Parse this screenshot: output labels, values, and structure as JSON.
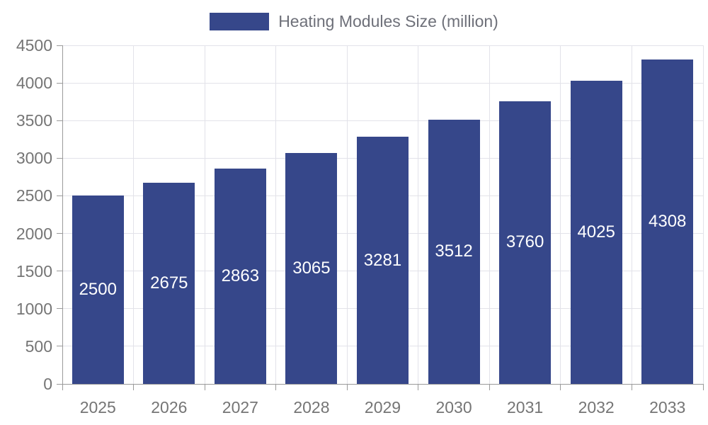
{
  "legend": {
    "label": "Heating Modules Size (million)"
  },
  "chart_data": {
    "type": "bar",
    "title": "Heating Modules Size (million)",
    "categories": [
      "2025",
      "2026",
      "2027",
      "2028",
      "2029",
      "2030",
      "2031",
      "2032",
      "2033"
    ],
    "values": [
      2500,
      2675,
      2863,
      3065,
      3281,
      3512,
      3760,
      4025,
      4308
    ],
    "xlabel": "",
    "ylabel": "",
    "ylim": [
      0,
      4500
    ],
    "yticks": [
      0,
      500,
      1000,
      1500,
      2000,
      2500,
      3000,
      3500,
      4000,
      4500
    ],
    "grid": true,
    "legend_position": "top",
    "colors": {
      "bar": "#36478A",
      "bar_value_label": "#ffffff",
      "axis_text": "#757575",
      "legend_text": "#6E7079",
      "gridline": "#E2E2E9",
      "axis_line": "#9A9A9A",
      "background": "#ffffff"
    }
  }
}
